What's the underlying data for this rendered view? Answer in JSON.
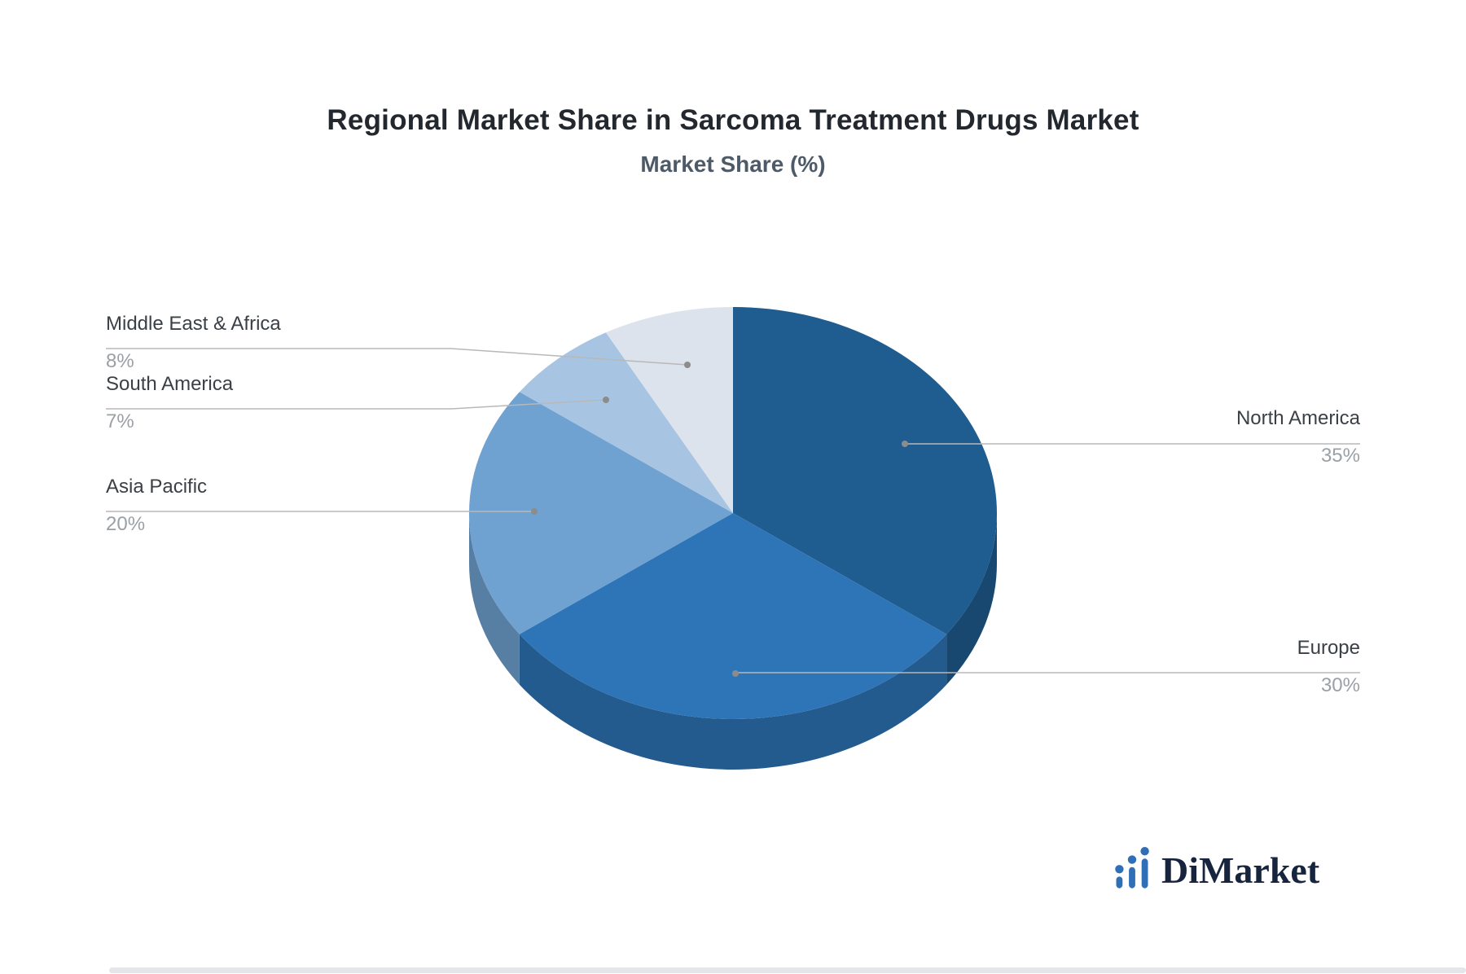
{
  "title": "Regional Market Share in Sarcoma Treatment Drugs Market",
  "subtitle": "Market Share (%)",
  "logo": {
    "text": "DiMarket",
    "icon": "bar-chart-dots-icon",
    "accent_color": "#2f6fb8",
    "text_color": "#16243d"
  },
  "chart_data": {
    "type": "pie",
    "title": "Regional Market Share in Sarcoma Treatment Drugs Market",
    "subtitle": "Market Share (%)",
    "unit": "%",
    "effect": "3d",
    "start_angle_deg": 0,
    "direction": "clockwise",
    "legend_position": "none",
    "leader_line_color": "#b8b8b8",
    "slices": [
      {
        "label": "North America",
        "value": 35,
        "value_label": "35%",
        "color": "#1f5c90",
        "label_side": "right"
      },
      {
        "label": "Europe",
        "value": 30,
        "value_label": "30%",
        "color": "#2e75b7",
        "label_side": "right"
      },
      {
        "label": "Asia Pacific",
        "value": 20,
        "value_label": "20%",
        "color": "#6fa1d1",
        "label_side": "left"
      },
      {
        "label": "South America",
        "value": 7,
        "value_label": "7%",
        "color": "#a7c4e2",
        "label_side": "left"
      },
      {
        "label": "Middle East & Africa",
        "value": 8,
        "value_label": "8%",
        "color": "#dde3ec",
        "label_side": "left"
      }
    ]
  }
}
